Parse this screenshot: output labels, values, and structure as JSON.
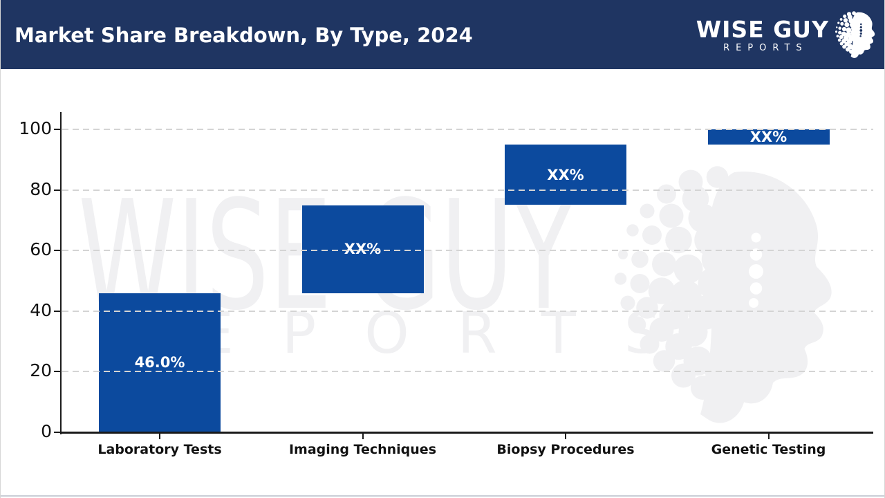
{
  "header": {
    "title": "Market Share Breakdown, By Type, 2024",
    "logo": {
      "line1": "WISE GUY",
      "line2": "REPORTS"
    }
  },
  "watermark": {
    "line1": "WISE GUY",
    "line2": "REPORTS"
  },
  "chart_data": {
    "type": "bar",
    "variant": "waterfall",
    "title": "Market Share Breakdown, By Type, 2024",
    "categories": [
      "Laboratory Tests",
      "Imaging Techniques",
      "Biopsy Procedures",
      "Genetic Testing"
    ],
    "segments": [
      {
        "start": 0,
        "end": 46
      },
      {
        "start": 46,
        "end": 75
      },
      {
        "start": 75,
        "end": 95
      },
      {
        "start": 95,
        "end": 100
      }
    ],
    "bar_labels": [
      "46.0%",
      "XX%",
      "XX%",
      "XX%"
    ],
    "yticks": [
      0,
      20,
      40,
      60,
      80,
      100
    ],
    "ylim": [
      0,
      105
    ],
    "xlabel": "",
    "ylabel": "",
    "grid": "horizontal-dashed",
    "legend": false
  },
  "colors": {
    "header_bg": "#1f3562",
    "bar": "#0c4a9e",
    "bar_label": "#ffffff",
    "grid": "#d4d4d4",
    "axis": "#1a1a1a",
    "watermark": "#f0f0f2"
  }
}
